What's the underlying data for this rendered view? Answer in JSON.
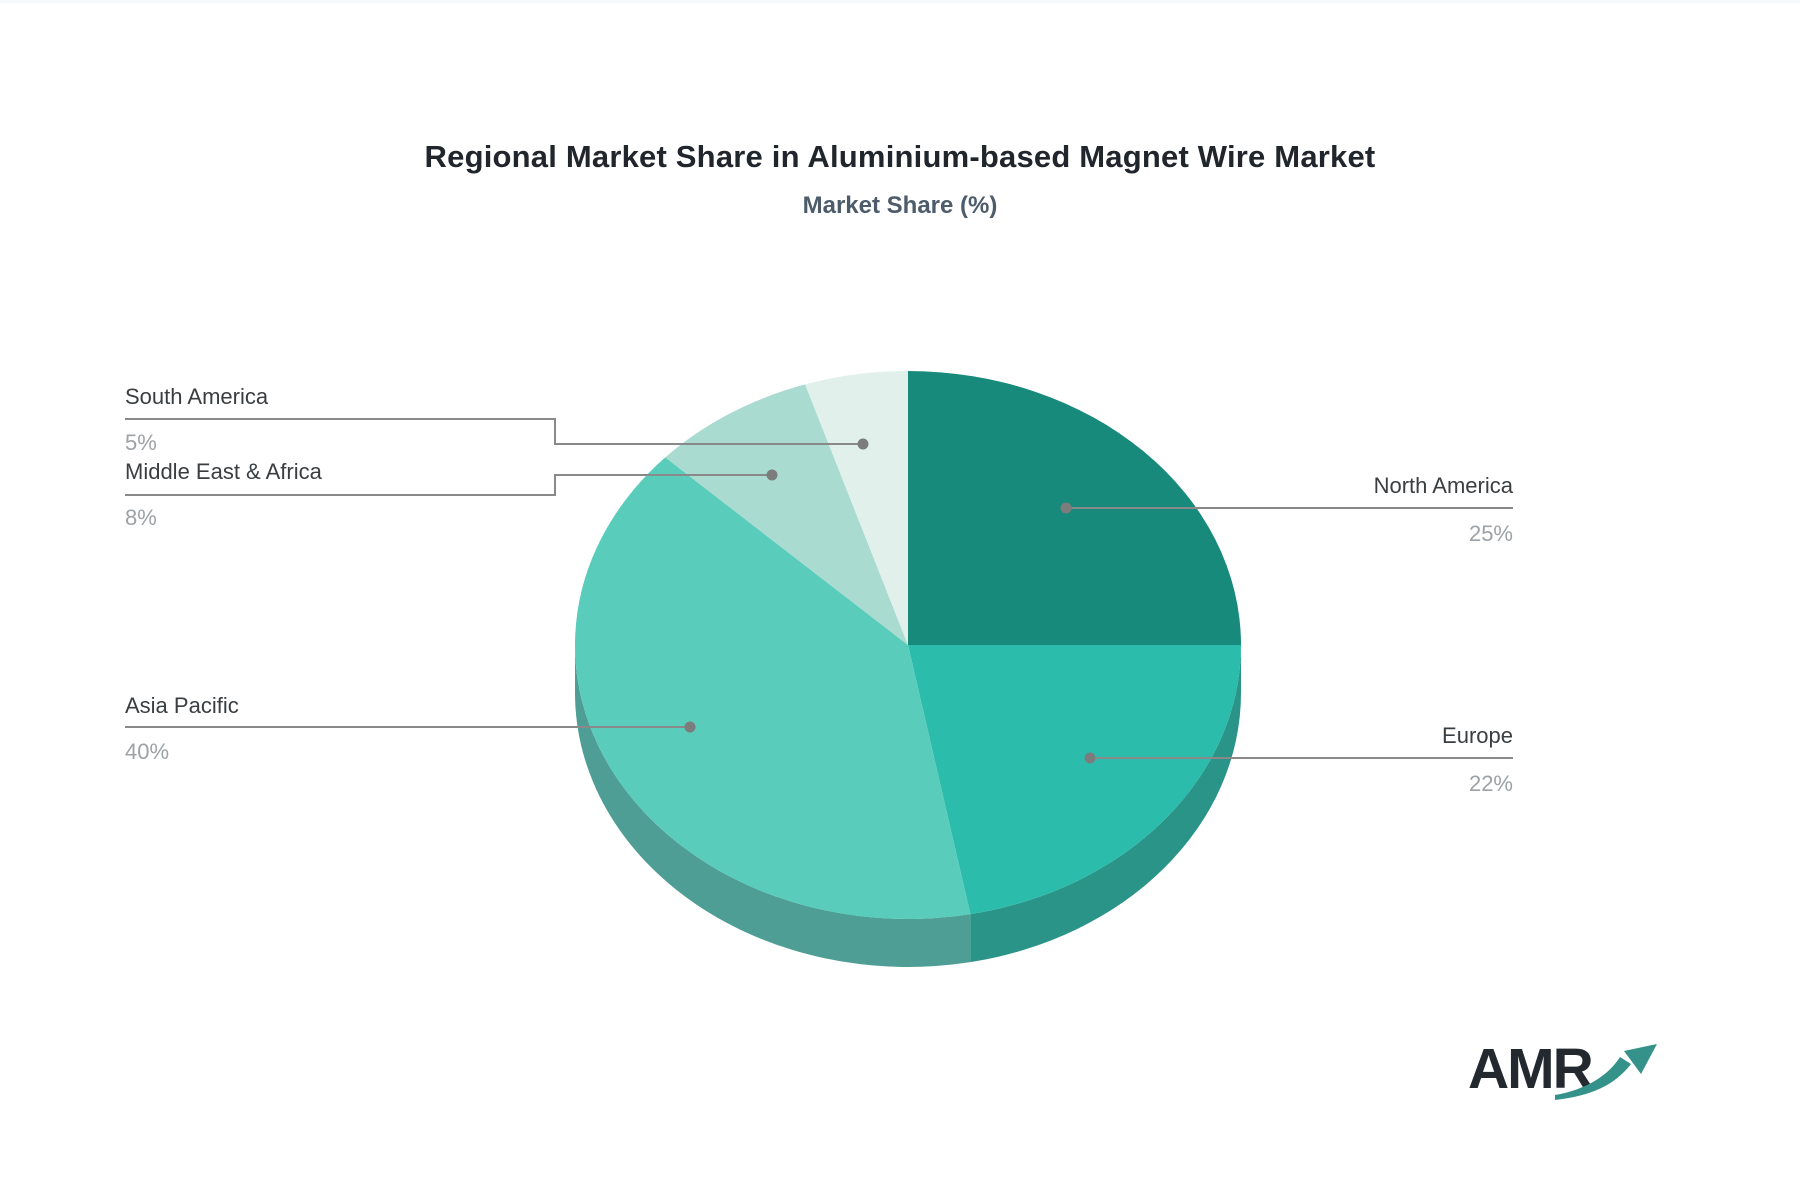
{
  "page": {
    "background": "#ffffff"
  },
  "chart": {
    "title": "Regional Market Share in Aluminium-based Magnet Wire Market",
    "subtitle": "Market Share (%)",
    "title_color": "#21262c",
    "subtitle_color": "#4c5c6b"
  },
  "chart_data": {
    "type": "pie",
    "title": "Regional Market Share in Aluminium-based Magnet Wire Market",
    "subtitle": "Market Share (%)",
    "unit": "%",
    "direction": "clockwise",
    "start_angle": "12-o'clock",
    "style": "3d-pie",
    "legend_position": "leader-line labels left and right",
    "labels": [
      "North America",
      "Europe",
      "Asia Pacific",
      "Middle East & Africa",
      "South America"
    ],
    "values": [
      25,
      22,
      40,
      8,
      5
    ],
    "slices": [
      {
        "label": "North America",
        "value": 25,
        "pct_label": "25%",
        "color": "#178a7c"
      },
      {
        "label": "Europe",
        "value": 22,
        "pct_label": "22%",
        "color": "#2bbcab",
        "side_color": "#2b9488"
      },
      {
        "label": "Asia Pacific",
        "value": 40,
        "pct_label": "40%",
        "color": "#5accbc",
        "side_color": "#4f9e95"
      },
      {
        "label": "Middle East & Africa",
        "value": 8,
        "pct_label": "8%",
        "color": "#a9dbd1"
      },
      {
        "label": "South America",
        "value": 5,
        "pct_label": "5%",
        "color": "#e2f0ec"
      }
    ],
    "label_name_color": "#3a3e41",
    "label_pct_color": "#9da2a6",
    "leader_line_color": "#898989",
    "leader_dot_color": "#7c7c7c"
  },
  "logo": {
    "text": "AMR",
    "text_color": "#23292e",
    "arrow_color": "#35928a"
  }
}
